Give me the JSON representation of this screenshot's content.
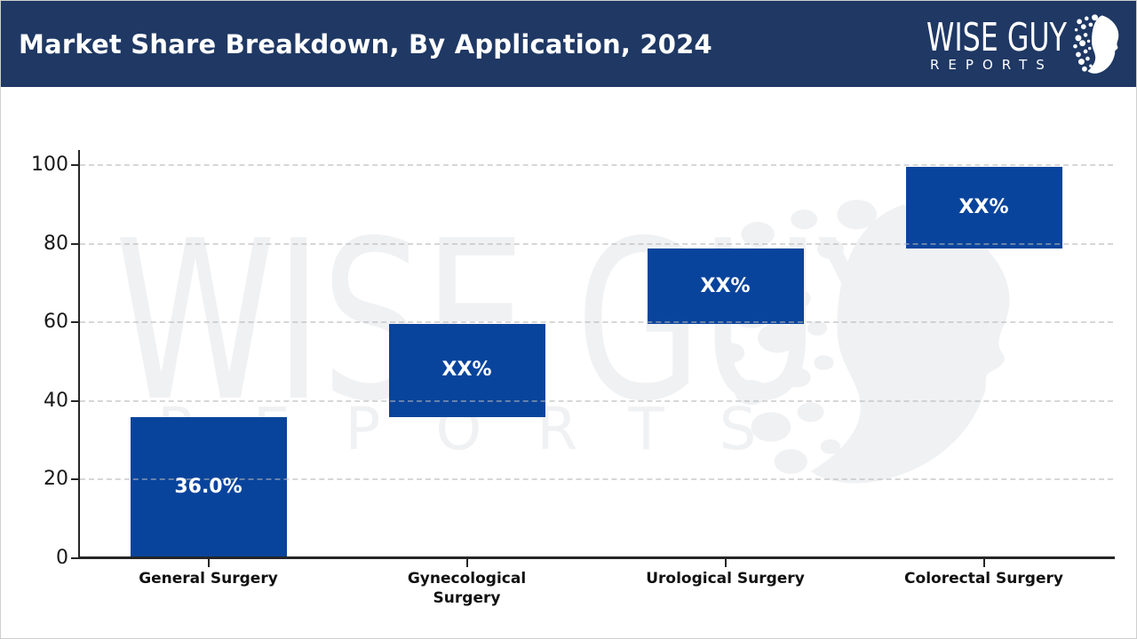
{
  "header": {
    "title": "Market Share Breakdown, By Application, 2024",
    "logo": {
      "line1": "WISE GUY",
      "line2": "REPORTS"
    }
  },
  "watermark": {
    "line1": "WISE GUY",
    "line2": "REPORTS"
  },
  "colors": {
    "header_bg": "#1f3864",
    "bar": "#09449c",
    "grid": "#d9d9d9",
    "axis": "#262626",
    "bar_label": "#ffffff",
    "watermark": "#f0f1f3"
  },
  "chart_data": {
    "type": "bar",
    "subtype": "waterfall",
    "title": "Market Share Breakdown, By Application, 2024",
    "categories": [
      "General Surgery",
      "Gynecological\nSurgery",
      "Urological Surgery",
      "Colorectal Surgery"
    ],
    "bars": [
      {
        "category": "General Surgery",
        "label": "36.0%",
        "start": 0,
        "end": 36.0
      },
      {
        "category": "Gynecological Surgery",
        "label": "XX%",
        "start": 36.0,
        "end": 59.5
      },
      {
        "category": "Urological Surgery",
        "label": "XX%",
        "start": 59.5,
        "end": 78.8
      },
      {
        "category": "Colorectal Surgery",
        "label": "XX%",
        "start": 78.8,
        "end": 99.5
      }
    ],
    "yticks": [
      0,
      20,
      40,
      60,
      80,
      100
    ],
    "ylim": [
      0,
      103.8
    ],
    "xlabel": "",
    "ylabel": "",
    "grid": "horizontal-dashed",
    "legend": "none"
  }
}
